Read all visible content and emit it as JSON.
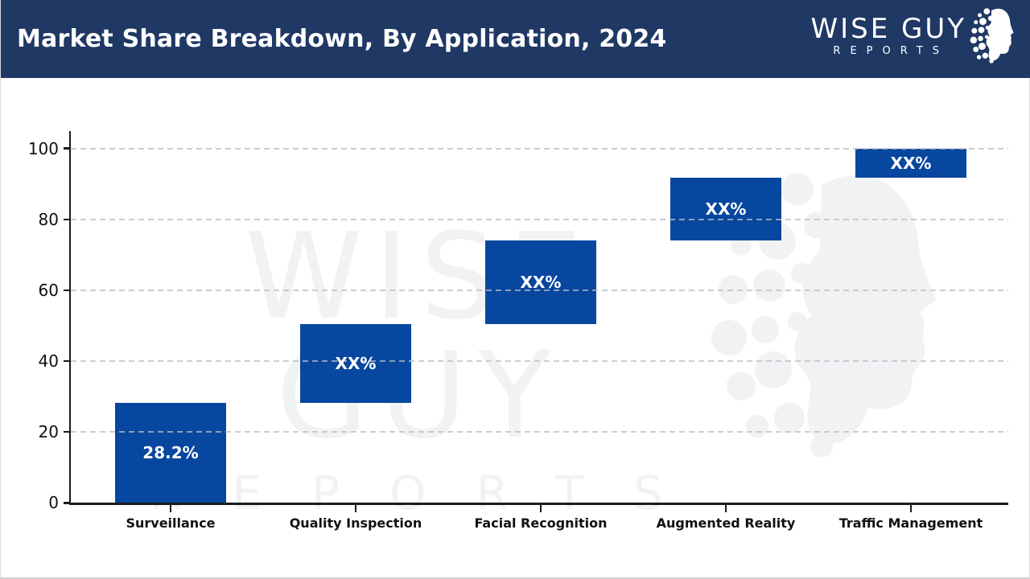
{
  "header": {
    "title": "Market Share Breakdown, By Application, 2024",
    "logo": {
      "line1": "WISE GUY",
      "line2": "REPORTS"
    }
  },
  "watermark": {
    "line1": "WISE GUY",
    "line2": "REPORTS"
  },
  "colors": {
    "header_bg": "#1f3864",
    "bar_fill": "#08479f",
    "axis": "#1a1a1a",
    "gridline": "#c4c9cf",
    "watermark": "#f1f2f3",
    "bar_label": "#ffffff"
  },
  "chart_data": {
    "type": "bar",
    "subtype": "waterfall",
    "title": "Market Share Breakdown, By Application, 2024",
    "xlabel": "",
    "ylabel": "",
    "categories": [
      "Surveillance",
      "Quality Inspection",
      "Facial Recognition",
      "Augmented Reality",
      "Traffic Management"
    ],
    "segments": [
      {
        "category": "Surveillance",
        "start": 0,
        "end": 28.2,
        "label": "28.2%"
      },
      {
        "category": "Quality Inspection",
        "start": 28.2,
        "end": 50.4,
        "label": "XX%"
      },
      {
        "category": "Facial Recognition",
        "start": 50.4,
        "end": 74.1,
        "label": "XX%"
      },
      {
        "category": "Augmented Reality",
        "start": 74.1,
        "end": 91.7,
        "label": "XX%"
      },
      {
        "category": "Traffic Management",
        "start": 91.7,
        "end": 100,
        "label": "XX%"
      }
    ],
    "yticks": [
      0,
      20,
      40,
      60,
      80,
      100
    ],
    "ylim": [
      0,
      105
    ],
    "grid": true,
    "grid_style": "dashed",
    "legend": false
  }
}
